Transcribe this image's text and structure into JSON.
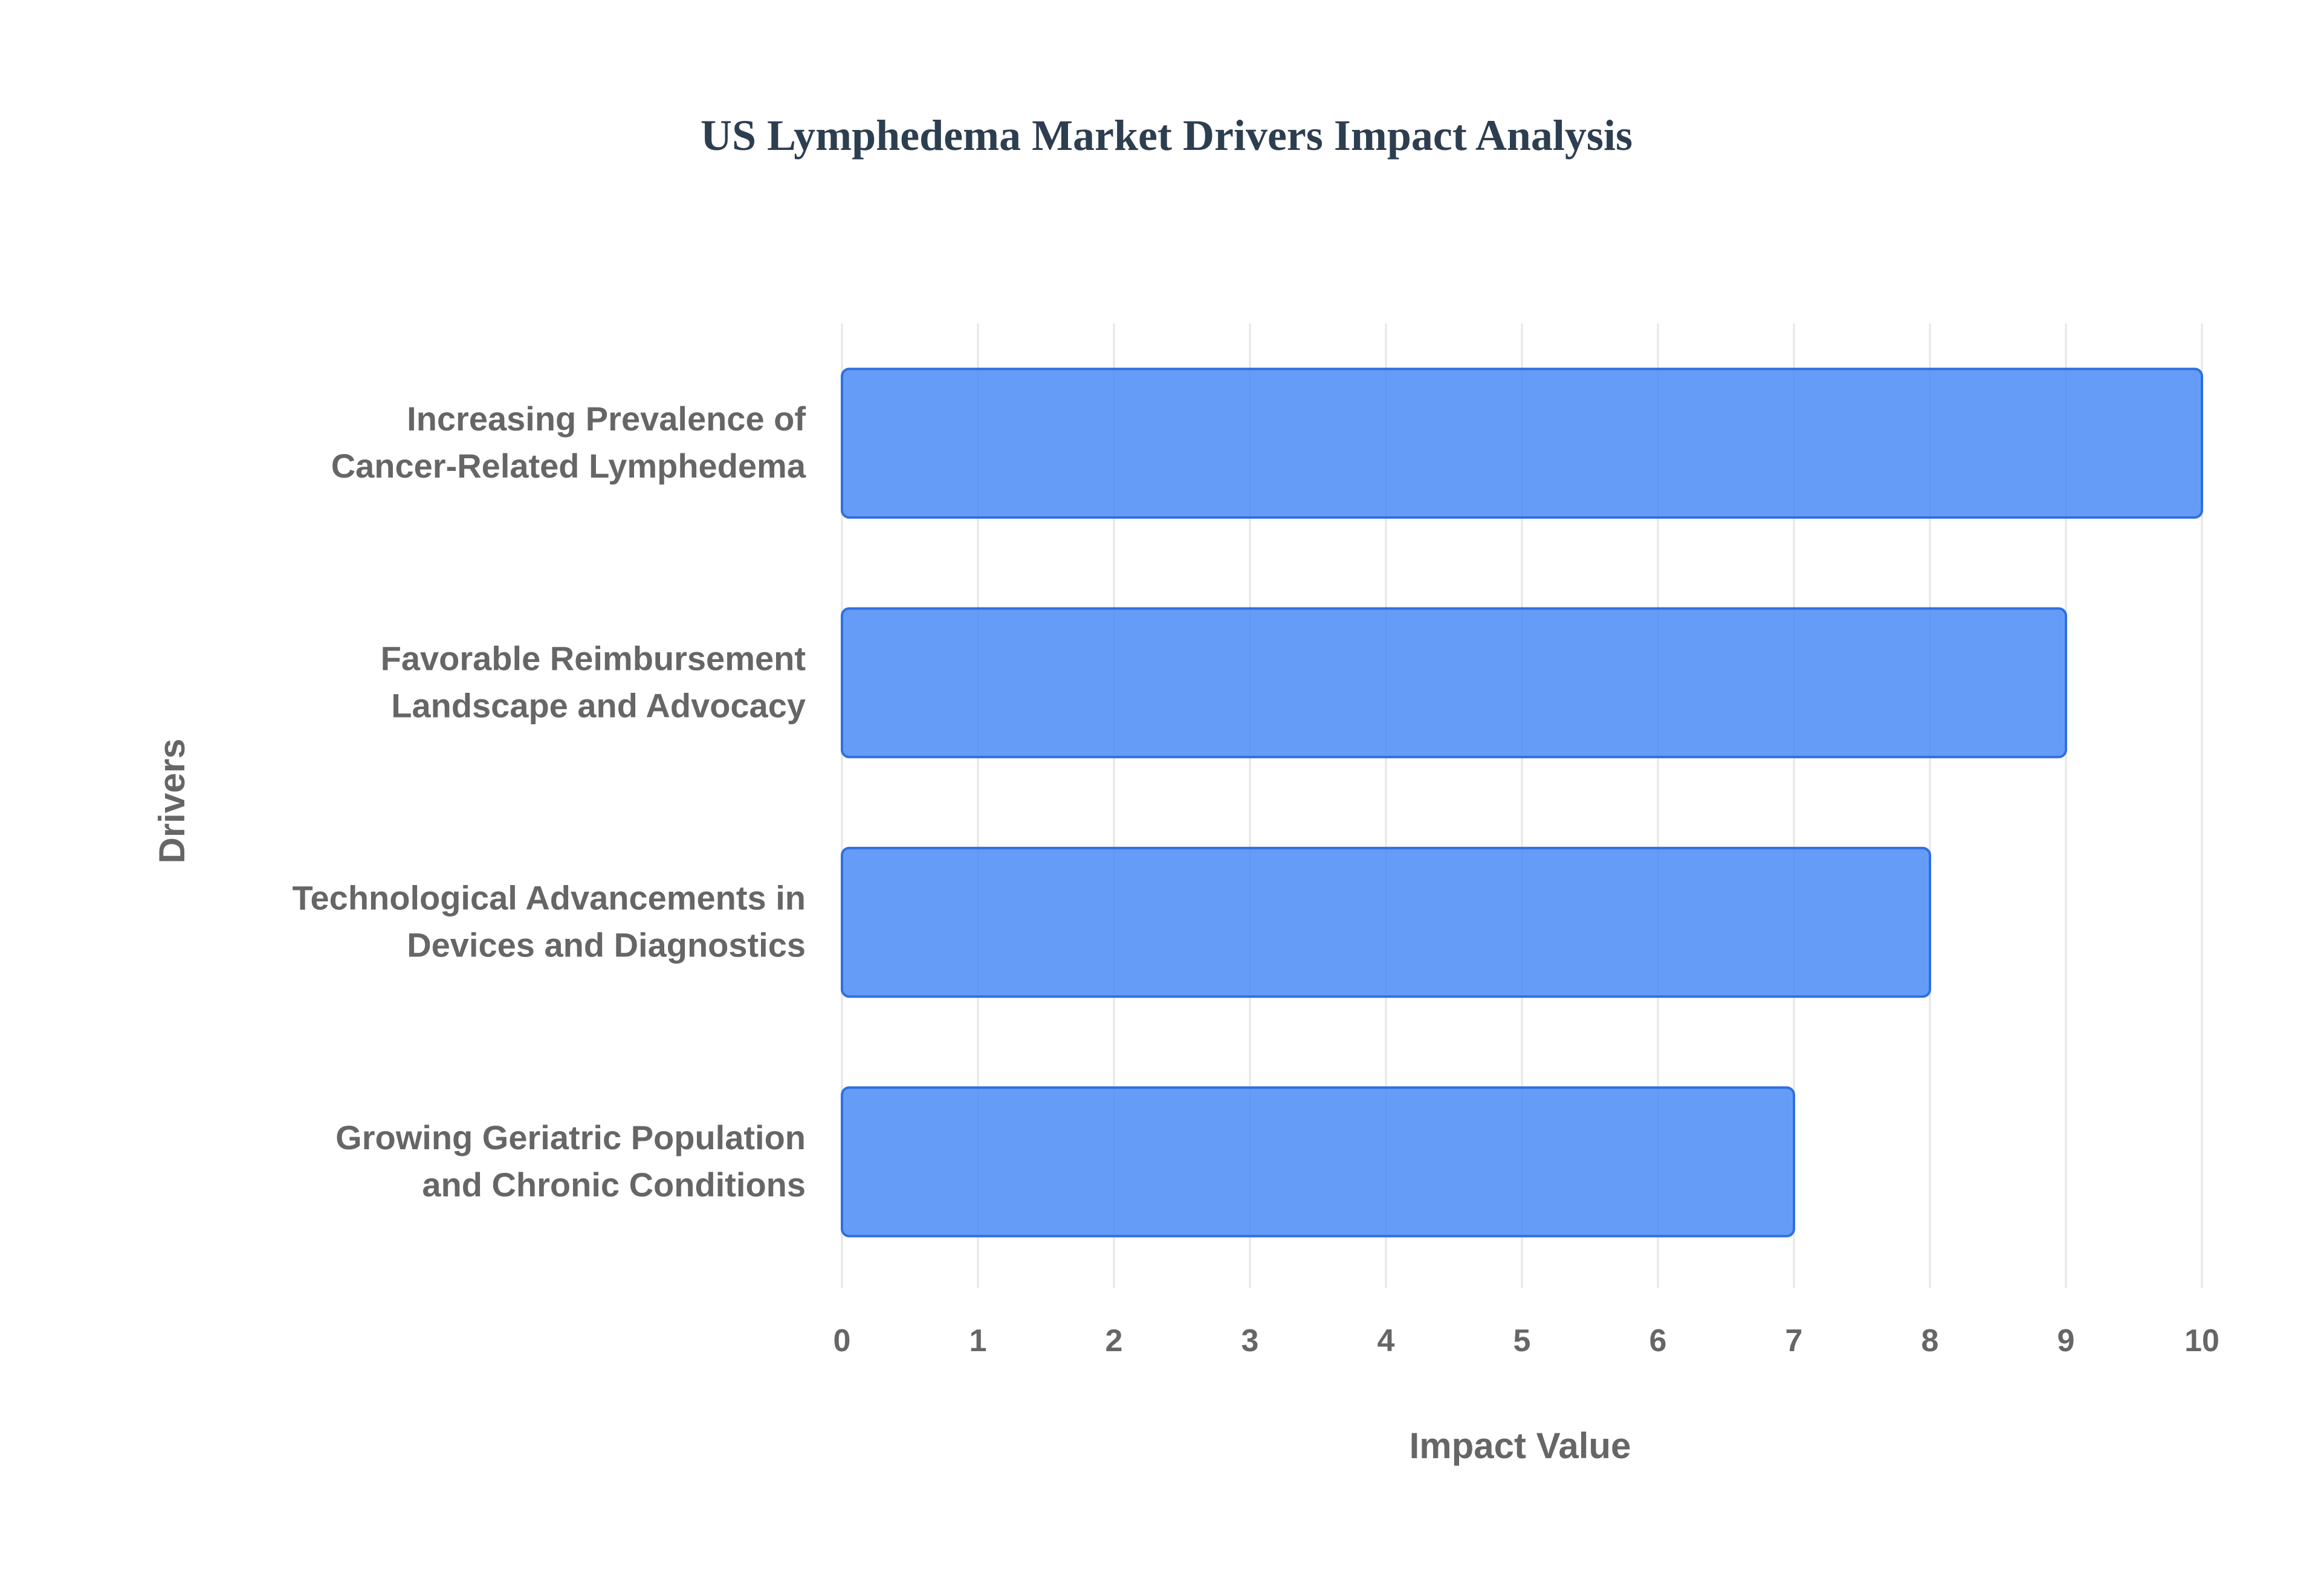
{
  "chart_data": {
    "type": "bar",
    "orientation": "horizontal",
    "title": "US Lymphedema Market Drivers Impact Analysis",
    "xlabel": "Impact Value",
    "ylabel": "Drivers",
    "categories": [
      [
        "Increasing Prevalence of",
        "Cancer-Related Lymphedema"
      ],
      [
        "Favorable Reimbursement",
        "Landscape and Advocacy"
      ],
      [
        "Technological Advancements in",
        "Devices and Diagnostics"
      ],
      [
        "Growing Geriatric Population",
        "and Chronic Conditions"
      ]
    ],
    "values": [
      10,
      9,
      8,
      7
    ],
    "xlim": [
      0,
      10
    ],
    "xticks": [
      "0",
      "1",
      "2",
      "3",
      "4",
      "5",
      "6",
      "7",
      "8",
      "9",
      "10"
    ],
    "grid": true,
    "legend": "none",
    "colors": {
      "bar_fill": "#4f8ef7",
      "bar_stroke": "#2f6fe0",
      "grid": "#e6e6e6",
      "title": "#2c3e50",
      "label": "#666666"
    }
  }
}
